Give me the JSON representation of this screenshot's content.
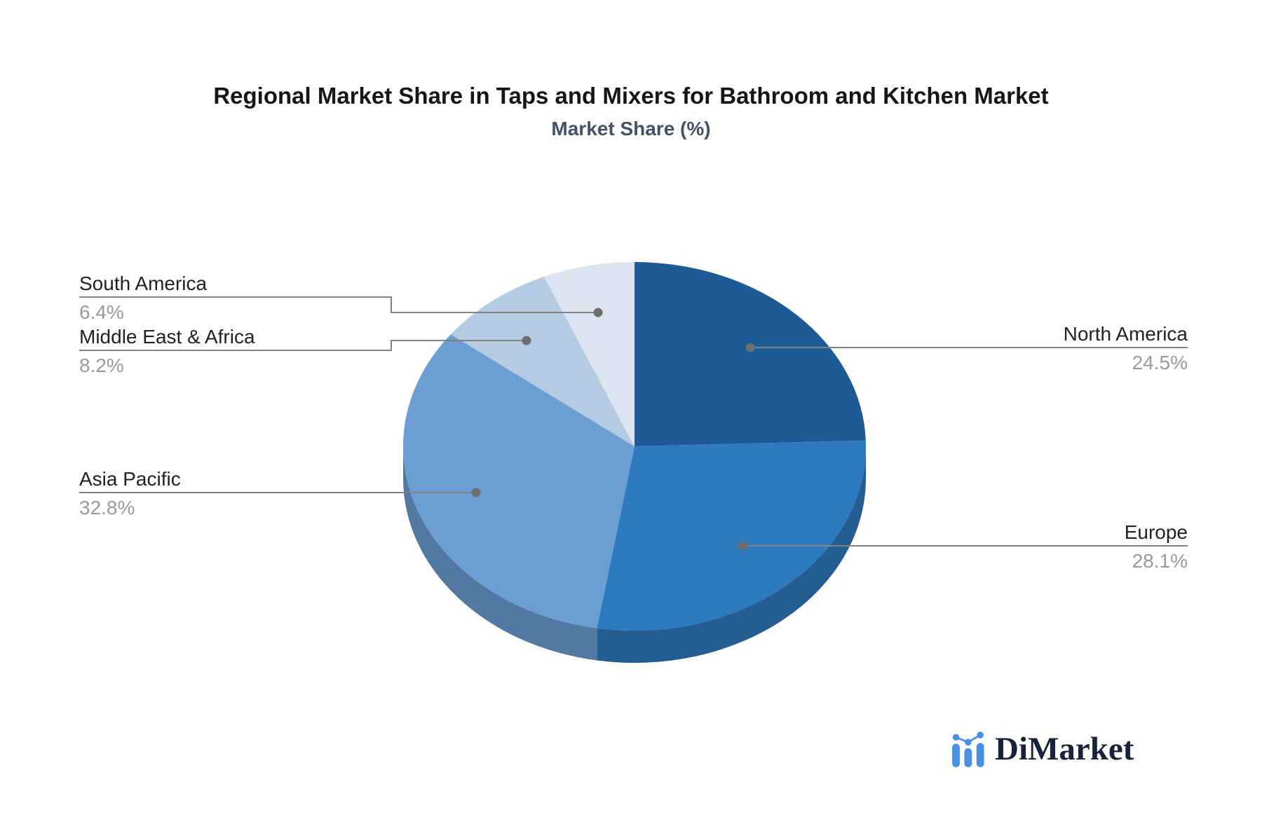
{
  "header": {
    "title": "Regional Market Share in Taps and Mixers for Bathroom and Kitchen Market",
    "subtitle": "Market Share (%)"
  },
  "chart_data": {
    "type": "pie",
    "style": "3d",
    "title": "Regional Market Share in Taps and Mixers for Bathroom and Kitchen Market",
    "subtitle": "Market Share (%)",
    "unit": "%",
    "direction": "clockwise",
    "start_angle_deg": 0,
    "legend": "none",
    "slices": [
      {
        "label": "North America",
        "value": 24.5,
        "display": "24.5%",
        "color": "#1d5a96"
      },
      {
        "label": "Europe",
        "value": 28.1,
        "display": "28.1%",
        "color": "#2e7abf"
      },
      {
        "label": "Asia Pacific",
        "value": 32.8,
        "display": "32.8%",
        "color": "#6b9fd4"
      },
      {
        "label": "Middle East & Africa",
        "value": 8.2,
        "display": "8.2%",
        "color": "#b5cbe3"
      },
      {
        "label": "South America",
        "value": 6.4,
        "display": "6.4%",
        "color": "#dce4ef"
      }
    ],
    "leader_line_color": "#828282",
    "leader_dot_color": "#6e6e6e",
    "label_text_color": "#222222",
    "value_text_color": "#9a9a9a"
  },
  "branding": {
    "logo_text": "DiMarket",
    "logo_icon": "bar-chart-trend-icon",
    "logo_text_color": "#16233a",
    "logo_accent_color": "#4a90e2"
  }
}
